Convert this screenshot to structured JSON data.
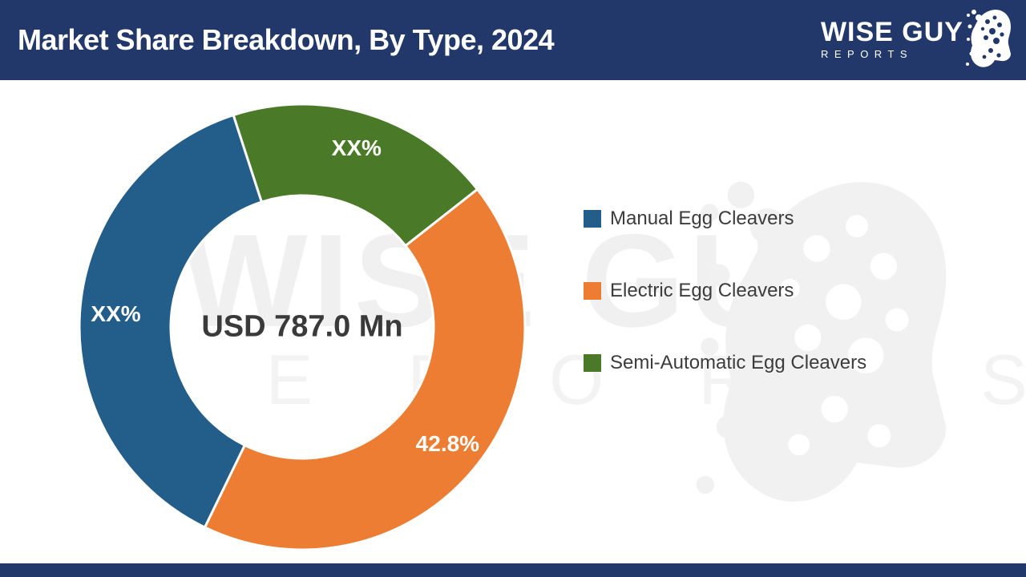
{
  "header": {
    "title": "Market Share Breakdown, By Type, 2024",
    "brand": {
      "name": "WISE GUY",
      "sub": "REPORTS"
    }
  },
  "watermark": {
    "line1": "WISE GUY",
    "line2": "REPORTS"
  },
  "colors": {
    "navy": "#22386B",
    "blue": "#235E8B",
    "orange": "#EC7D33",
    "green": "#4A7A28",
    "text": "#3C3C3C",
    "white": "#FFFFFF"
  },
  "chart_data": {
    "type": "pie",
    "subtype": "donut",
    "title": "Market Share Breakdown, By Type, 2024",
    "center_label": "USD 787.0 Mn",
    "start_angle_deg": -18,
    "inner_radius": 164,
    "outer_radius": 278,
    "label_radius": 233,
    "slices": [
      {
        "name": "Semi-Automatic Egg Cleavers",
        "label": "XX%",
        "pct": 19.4,
        "color": "#4A7A28"
      },
      {
        "name": "Electric Egg Cleavers",
        "label": "42.8%",
        "pct": 42.8,
        "color": "#EC7D33"
      },
      {
        "name": "Manual Egg Cleavers",
        "label": "XX%",
        "pct": 37.8,
        "color": "#235E8B"
      }
    ],
    "legend": [
      {
        "name": "Manual Egg Cleavers",
        "color": "#235E8B"
      },
      {
        "name": "Electric Egg Cleavers",
        "color": "#EC7D33"
      },
      {
        "name": "Semi-Automatic Egg Cleavers",
        "color": "#4A7A28"
      }
    ],
    "legend_position": "right",
    "grid": false
  }
}
